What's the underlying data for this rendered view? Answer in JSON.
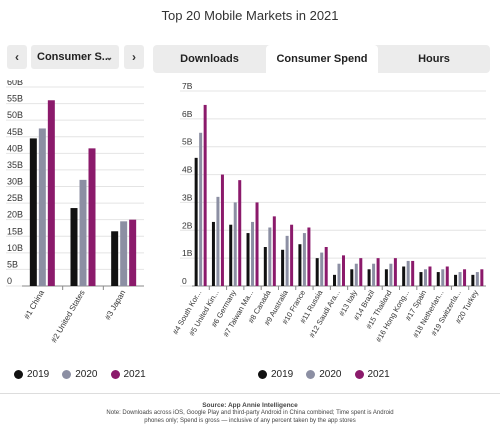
{
  "title": "Top 20 Mobile Markets in 2021",
  "nav": {
    "prev_icon": "chevron-left-icon",
    "next_icon": "chevron-right-icon",
    "prev": "‹",
    "next": "›"
  },
  "dropdown": {
    "selected": "Consumer S...",
    "chevron": "⌄"
  },
  "tabs": [
    "Downloads",
    "Consumer Spend",
    "Hours"
  ],
  "active_tab": 1,
  "colors": {
    "2019": "#111111",
    "2020": "#8c8fa3",
    "2021": "#8b1a6b"
  },
  "legend": [
    "2019",
    "2020",
    "2021"
  ],
  "footer": {
    "source": "Source: App Annie Intelligence",
    "note1": "Note: Downloads across iOS, Google Play and third-party Android in China combined; Time spent is Android",
    "note2": "phones only; Spend is gross — inclusive of any percent taken by the app stores"
  },
  "chart_data": [
    {
      "type": "bar",
      "categories": [
        "#1 China",
        "#2 United States",
        "#3 Japan"
      ],
      "series": [
        {
          "name": "2019",
          "values": [
            44.5,
            23.5,
            16.5
          ]
        },
        {
          "name": "2020",
          "values": [
            47.5,
            32,
            19.5
          ]
        },
        {
          "name": "2021",
          "values": [
            56,
            41.5,
            20
          ]
        }
      ],
      "ylim": [
        0,
        60
      ],
      "yticks": [
        "0",
        "5B",
        "10B",
        "15B",
        "20B",
        "25B",
        "30B",
        "35B",
        "40B",
        "45B",
        "50B",
        "55B",
        "60B"
      ],
      "xlabel": "",
      "ylabel": ""
    },
    {
      "type": "bar",
      "categories": [
        "#4 South Kor...",
        "#5 United Kin...",
        "#6 Germany",
        "#7 Taiwan Ma...",
        "#8 Canada",
        "#9 Australia",
        "#10 France",
        "#11 Russia",
        "#12 Saudi Ara...",
        "#13 Italy",
        "#14 Brazil",
        "#15 Thailand",
        "#16 Hong Kong...",
        "#17 Spain",
        "#18 Netherlan...",
        "#19 Switzerla...",
        "#20 Turkey"
      ],
      "series": [
        {
          "name": "2019",
          "values": [
            4.6,
            2.3,
            2.2,
            1.9,
            1.4,
            1.3,
            1.5,
            1.0,
            0.4,
            0.6,
            0.6,
            0.6,
            0.7,
            0.5,
            0.5,
            0.4,
            0.4
          ]
        },
        {
          "name": "2020",
          "values": [
            5.5,
            3.2,
            3.0,
            2.3,
            2.1,
            1.8,
            1.9,
            1.2,
            0.8,
            0.8,
            0.8,
            0.8,
            0.9,
            0.6,
            0.6,
            0.5,
            0.5
          ]
        },
        {
          "name": "2021",
          "values": [
            6.5,
            4.0,
            3.8,
            3.0,
            2.5,
            2.2,
            2.1,
            1.4,
            1.1,
            1.0,
            1.0,
            1.0,
            0.9,
            0.7,
            0.7,
            0.6,
            0.6
          ]
        }
      ],
      "ylim": [
        0,
        7
      ],
      "yticks": [
        "0",
        "1B",
        "2B",
        "3B",
        "4B",
        "5B",
        "6B",
        "7B"
      ],
      "xlabel": "",
      "ylabel": ""
    }
  ]
}
